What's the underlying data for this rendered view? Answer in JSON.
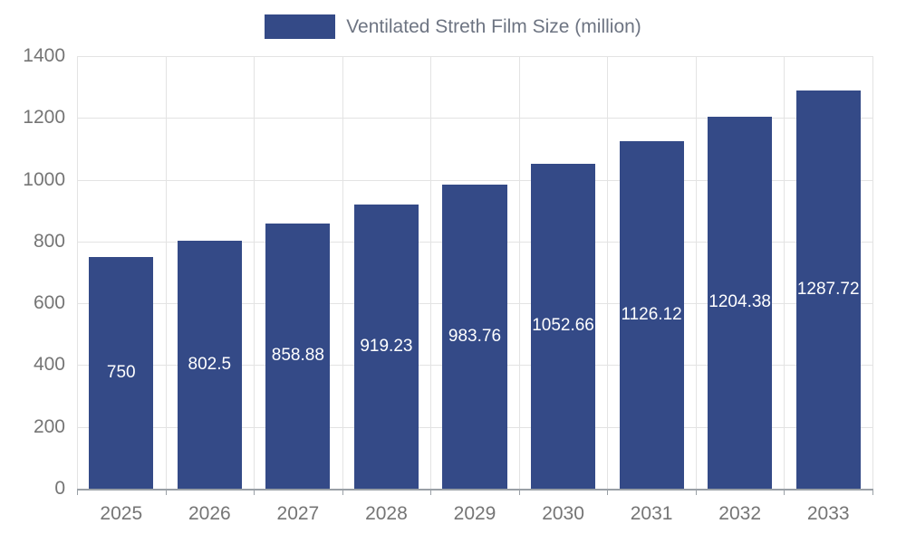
{
  "legend": {
    "label": "Ventilated Streth Film Size (million)"
  },
  "chart_data": {
    "type": "bar",
    "title": "Ventilated Streth Film Size (million)",
    "categories": [
      "2025",
      "2026",
      "2027",
      "2028",
      "2029",
      "2030",
      "2031",
      "2032",
      "2033"
    ],
    "values": [
      750,
      802.5,
      858.88,
      919.23,
      983.76,
      1052.66,
      1126.12,
      1204.38,
      1287.72
    ],
    "value_labels": [
      "750",
      "802.5",
      "858.88",
      "919.23",
      "983.76",
      "1052.66",
      "1126.12",
      "1204.38",
      "1287.72"
    ],
    "xlabel": "",
    "ylabel": "",
    "ylim": [
      0,
      1400
    ],
    "yticks": [
      0,
      200,
      400,
      600,
      800,
      1000,
      1200,
      1400
    ],
    "grid": true,
    "legend_position": "top-center",
    "bar_color": "#344a87",
    "label_color": "#ffffff",
    "axis_text_color": "#757575",
    "gridline_color": "#e3e3e3"
  }
}
